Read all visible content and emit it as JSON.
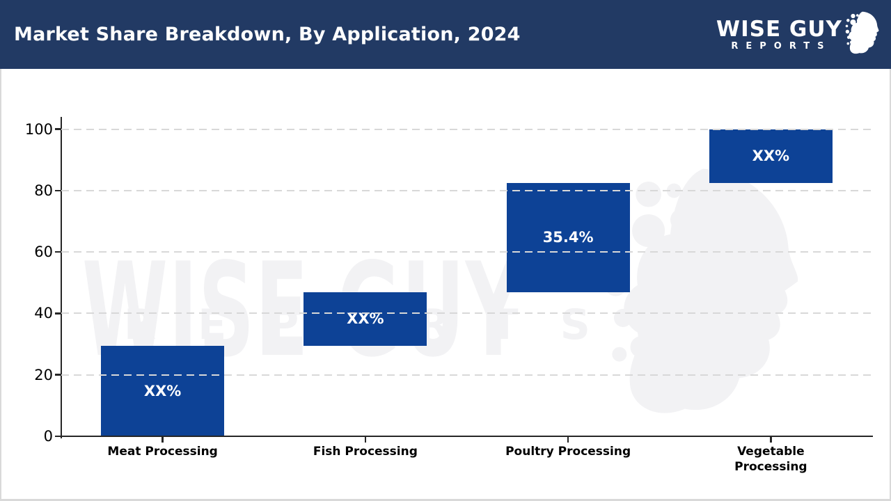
{
  "header": {
    "title": "Market Share Breakdown, By Application, 2024",
    "logo": {
      "line1": "WISE GUY",
      "line2": "REPORTS"
    }
  },
  "watermark": {
    "line1": "WISE GUY",
    "line2": "REPORTS"
  },
  "colors": {
    "header_bg": "#223a64",
    "bar": "#0d4296",
    "grid": "#d8d8d8",
    "axis": "#262626",
    "watermark": "#f2f2f4",
    "page_border": "#d9d9d9",
    "bar_label": "#ffffff"
  },
  "chart_data": {
    "type": "bar",
    "subtype": "waterfall",
    "title": "Market Share Breakdown, By Application, 2024",
    "categories": [
      "Meat Processing",
      "Fish Processing",
      "Poultry Processing",
      "Vegetable Processing"
    ],
    "category_lines": [
      [
        "Meat Processing"
      ],
      [
        "Fish Processing"
      ],
      [
        "Poultry Processing"
      ],
      [
        "Vegetable",
        "Processing"
      ]
    ],
    "segments": [
      {
        "category": "Meat Processing",
        "start": 0,
        "end": 29.4,
        "value": 29.4,
        "label": "XX%"
      },
      {
        "category": "Fish Processing",
        "start": 29.4,
        "end": 47.0,
        "value": 17.6,
        "label": "XX%"
      },
      {
        "category": "Poultry Processing",
        "start": 47.0,
        "end": 82.4,
        "value": 35.4,
        "label": "35.4%"
      },
      {
        "category": "Vegetable Processing",
        "start": 82.4,
        "end": 100,
        "value": 17.6,
        "label": "XX%"
      }
    ],
    "xlabel": "",
    "ylabel": "",
    "ylim": [
      0,
      100
    ],
    "yticks": [
      0,
      20,
      40,
      60,
      80,
      100
    ],
    "grid": "horizontal-dashed",
    "legend": "none"
  }
}
